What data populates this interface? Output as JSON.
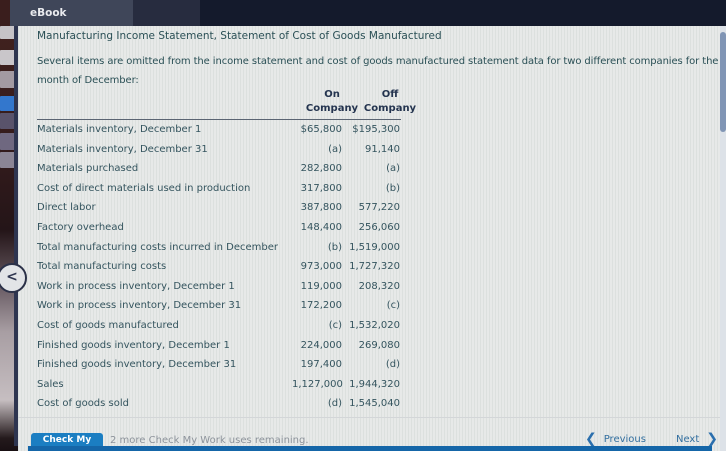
{
  "window": {
    "tab_label": "eBook"
  },
  "problem": {
    "title": "Manufacturing Income Statement, Statement of Cost of Goods Manufactured",
    "description": "Several items are omitted from the income statement and cost of goods manufactured statement data for two different companies for the month of December:"
  },
  "table": {
    "columns": [
      {
        "line1": "On",
        "line2": "Company"
      },
      {
        "line1": "Off",
        "line2": "Company"
      }
    ],
    "rows": [
      {
        "label": "Materials inventory, December 1",
        "on": "$65,800",
        "off": "$195,300"
      },
      {
        "label": "Materials inventory, December 31",
        "on": "(a)",
        "off": "91,140"
      },
      {
        "label": "Materials purchased",
        "on": "282,800",
        "off": "(a)"
      },
      {
        "label": "Cost of direct materials used in production",
        "on": "317,800",
        "off": "(b)"
      },
      {
        "label": "Direct labor",
        "on": "387,800",
        "off": "577,220"
      },
      {
        "label": "Factory overhead",
        "on": "148,400",
        "off": "256,060"
      },
      {
        "label": "Total manufacturing costs incurred in December",
        "on": "(b)",
        "off": "1,519,000"
      },
      {
        "label": "Total manufacturing costs",
        "on": "973,000",
        "off": "1,727,320"
      },
      {
        "label": "Work in process inventory, December 1",
        "on": "119,000",
        "off": "208,320"
      },
      {
        "label": "Work in process inventory, December 31",
        "on": "172,200",
        "off": "(c)"
      },
      {
        "label": "Cost of goods manufactured",
        "on": "(c)",
        "off": "1,532,020"
      },
      {
        "label": "Finished goods inventory, December 1",
        "on": "224,000",
        "off": "269,080"
      },
      {
        "label": "Finished goods inventory, December 31",
        "on": "197,400",
        "off": "(d)"
      },
      {
        "label": "Sales",
        "on": "1,127,000",
        "off": "1,944,320"
      },
      {
        "label": "Cost of goods sold",
        "on": "(d)",
        "off": "1,545,040"
      }
    ]
  },
  "side": {
    "collapse_icon": "<"
  },
  "footer": {
    "check_button_label": "Check My Work",
    "uses_remaining": "2 more Check My Work uses remaining.",
    "previous_label": "Previous",
    "next_label": "Next",
    "prev_icon": "❮",
    "next_icon": "❯"
  },
  "colors": {
    "topbar_bg": "#141a2c",
    "active_tab_bg": "#3f4659",
    "content_bg": "#e7e9e8",
    "body_text": "#2b5056",
    "table_header_text": "#24344f",
    "check_button_bg": "#1b7ec2",
    "pager_link": "#336f9f",
    "footer_accent": "#1566a8"
  }
}
